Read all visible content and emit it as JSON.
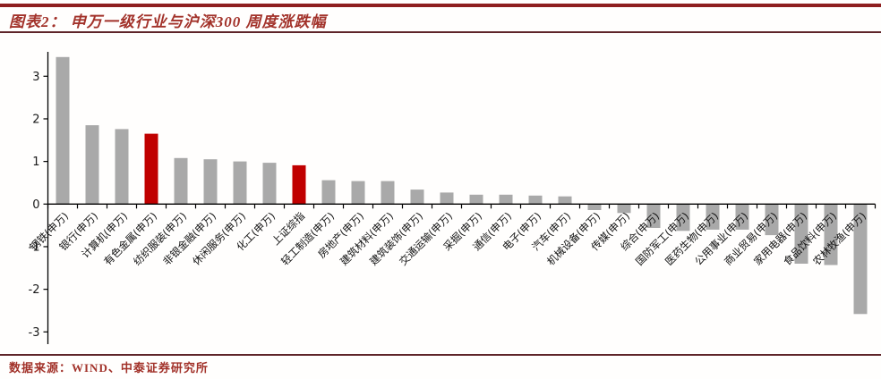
{
  "header": {
    "title": "图表2：  申万一级行业与沪深300  周度涨跌幅"
  },
  "footer": {
    "source": "数据来源：WIND、中泰证券研究所"
  },
  "colors": {
    "bar_default": "#a9a9a9",
    "bar_highlight": "#c00000",
    "title_text": "#a2322a",
    "rule_top": "#8e1f1f",
    "rule_thin": "#5e2429",
    "axis": "#000000",
    "tick_label": "#1a1a1a"
  },
  "chart_data": {
    "type": "bar",
    "title": "申万一级行业与沪深300 周度涨跌幅",
    "xlabel": "",
    "ylabel": "",
    "ylim": [
      -3.3,
      3.6
    ],
    "yticks": [
      3,
      2,
      1,
      0,
      -1,
      -2,
      -3
    ],
    "grid": false,
    "legend": false,
    "categories": [
      "钢铁(申万)",
      "银行(申万)",
      "计算机(申万)",
      "有色金属(申万)",
      "纺织服装(申万)",
      "非银金融(申万)",
      "休闲服务(申万)",
      "化工(申万)",
      "上证综指",
      "轻工制造(申万)",
      "房地产(申万)",
      "建筑材料(申万)",
      "建筑装饰(申万)",
      "交通运输(申万)",
      "采掘(申万)",
      "通信(申万)",
      "电子(申万)",
      "汽车(申万)",
      "机械设备(申万)",
      "传媒(申万)",
      "综合(申万)",
      "国防军工(申万)",
      "医药生物(申万)",
      "公用事业(申万)",
      "商业贸易(申万)",
      "家用电器(申万)",
      "食品饮料(申万)",
      "农林牧渔(申万)"
    ],
    "values": [
      3.45,
      1.85,
      1.76,
      1.65,
      1.08,
      1.05,
      1.0,
      0.97,
      0.91,
      0.56,
      0.54,
      0.54,
      0.34,
      0.27,
      0.22,
      0.22,
      0.2,
      0.18,
      -0.14,
      -0.21,
      -0.56,
      -0.63,
      -0.6,
      -0.6,
      -0.73,
      -1.4,
      -1.43,
      -2.58
    ],
    "highlighted_categories": [
      "有色金属(申万)",
      "上证综指"
    ]
  }
}
